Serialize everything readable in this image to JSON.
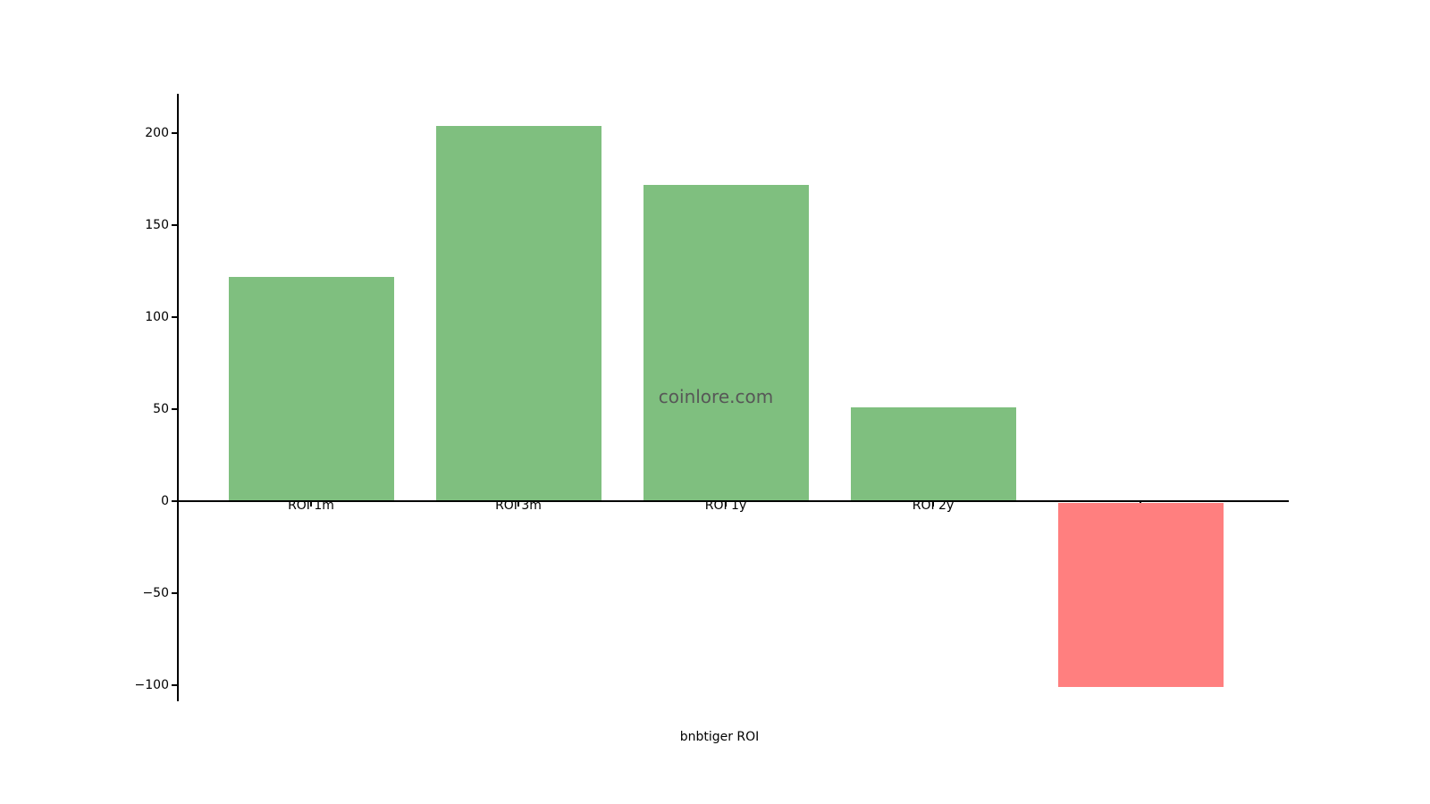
{
  "watermark": {
    "text": "coinlore.com",
    "color": "#575757"
  },
  "chart_data": {
    "type": "bar",
    "title": "",
    "xlabel": "bnbtiger ROI",
    "ylabel": "",
    "categories": [
      "ROI 1m",
      "ROI 3m",
      "ROI 1y",
      "ROI 2y",
      ""
    ],
    "values": [
      122,
      204,
      172,
      51,
      -100
    ],
    "bar_colors": [
      "#7fbf7f",
      "#7fbf7f",
      "#7fbf7f",
      "#7fbf7f",
      "#ff7f7f"
    ],
    "positive_color": "#7fbf7f",
    "negative_color": "#ff7f7f",
    "y_ticks": [
      200,
      150,
      100,
      50,
      0,
      -50,
      -100
    ],
    "y_tick_labels": [
      "200",
      "150",
      "100",
      "50",
      "0",
      "−50",
      "−100"
    ],
    "ylim": [
      -109,
      221
    ],
    "grid": false,
    "legend": "none",
    "axis_color": "#000000",
    "text_color": "#000000"
  }
}
